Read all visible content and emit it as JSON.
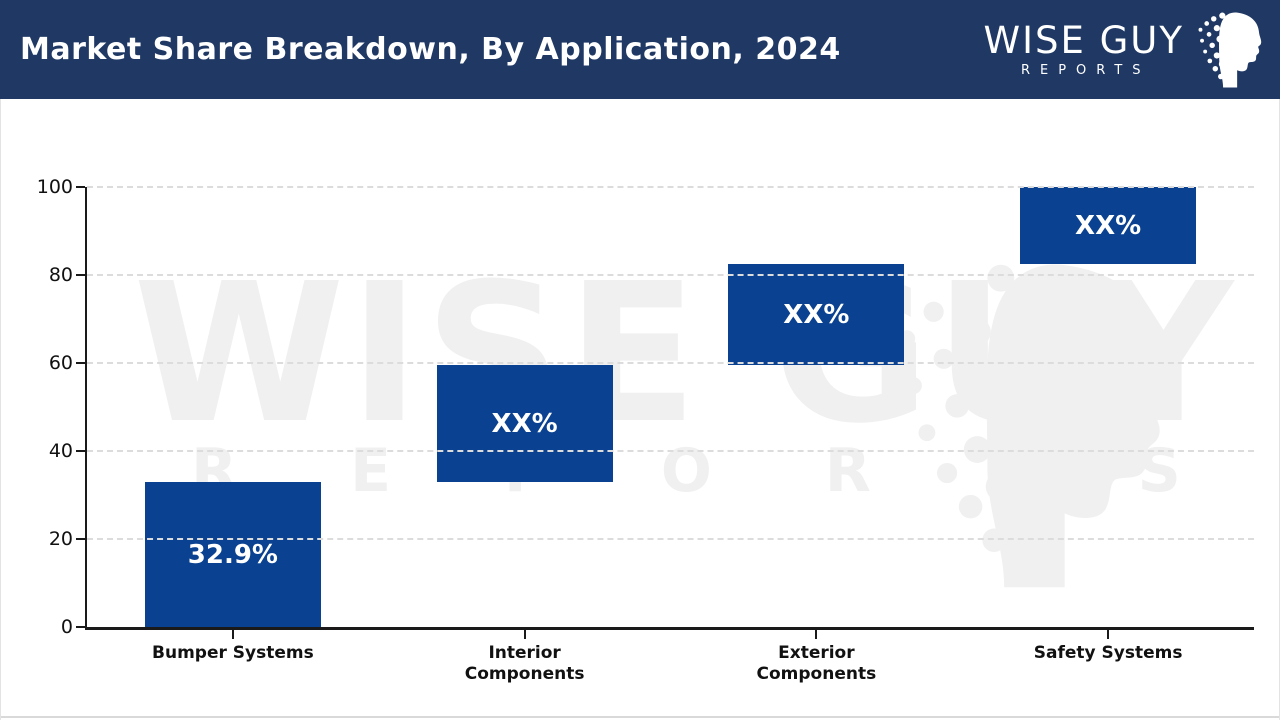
{
  "header": {
    "title": "Market Share Breakdown, By Application, 2024",
    "logo": {
      "name_line": "WISE GUY",
      "sub_line": "REPORTS"
    }
  },
  "watermark": {
    "name_line": "WISE GUY",
    "sub_line": "R E P O R T S"
  },
  "chart_data": {
    "type": "bar",
    "subtype": "waterfall-floating-bars",
    "title": "Market Share Breakdown, By Application, 2024",
    "categories": [
      "Bumper Systems",
      "Interior Components",
      "Exterior Components",
      "Safety Systems"
    ],
    "category_label_lines": [
      [
        "Bumper Systems"
      ],
      [
        "Interior",
        "Components"
      ],
      [
        "Exterior",
        "Components"
      ],
      [
        "Safety Systems"
      ]
    ],
    "segments": [
      {
        "category": "Bumper Systems",
        "start": 0,
        "end": 32.9,
        "label": "32.9%"
      },
      {
        "category": "Interior Components",
        "start": 32.9,
        "end": 59.5,
        "label": "XX%"
      },
      {
        "category": "Exterior Components",
        "start": 59.5,
        "end": 82.5,
        "label": "XX%"
      },
      {
        "category": "Safety Systems",
        "start": 82.5,
        "end": 100,
        "label": "XX%"
      }
    ],
    "ylim": [
      0,
      100
    ],
    "yticks": [
      0,
      20,
      40,
      60,
      80,
      100
    ],
    "grid": "horizontal-dashed-over-bars",
    "legend": "none",
    "colors": {
      "bar": "#0a4191",
      "bar_label": "#ffffff",
      "axis": "#1a1a1a",
      "grid": "#dcdcdc",
      "header_bg": "#1f3864",
      "watermark": "#f0f0f0",
      "tick_text": "#111111"
    }
  }
}
